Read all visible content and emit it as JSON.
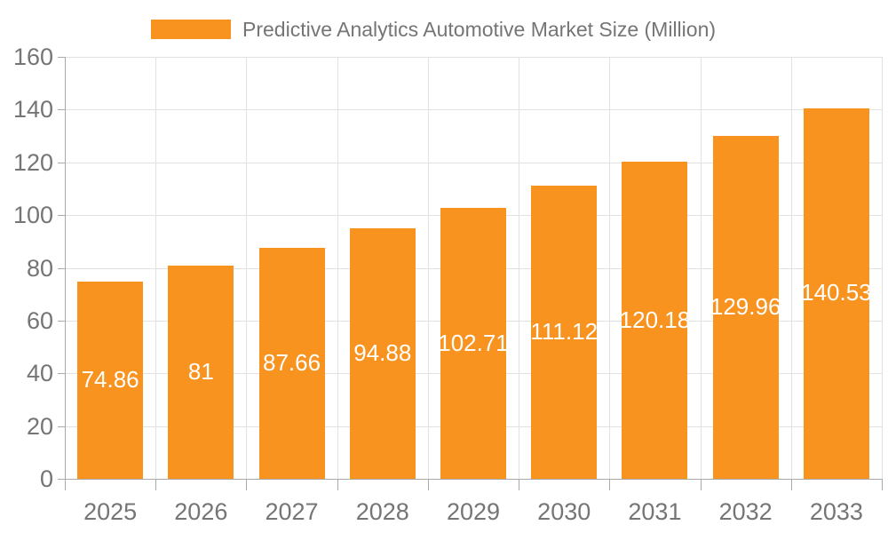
{
  "legend": {
    "label": "Predictive Analytics Automotive Market Size (Million)",
    "swatch_icon": "legend-swatch-icon"
  },
  "colors": {
    "bar": "#F7931E",
    "value_label": "#FFFFFF",
    "axis_text": "#757575",
    "grid_line": "#E2E2E2",
    "axis_line": "#A9A9A9",
    "background": "#FFFFFF"
  },
  "chart_data": {
    "type": "bar",
    "title": "Predictive Analytics Automotive Market Size (Million)",
    "categories": [
      "2025",
      "2026",
      "2027",
      "2028",
      "2029",
      "2030",
      "2031",
      "2032",
      "2033"
    ],
    "values": [
      74.86,
      81,
      87.66,
      94.88,
      102.71,
      111.12,
      120.18,
      129.96,
      140.53
    ],
    "value_labels": [
      "74.86",
      "81",
      "87.66",
      "94.88",
      "102.71",
      "111.12",
      "120.18",
      "129.96",
      "140.53"
    ],
    "xlabel": "",
    "ylabel": "",
    "ylim": [
      0,
      160
    ],
    "ytick_step": 20,
    "yticks": [
      0,
      20,
      40,
      60,
      80,
      100,
      120,
      140,
      160
    ],
    "grid": "both",
    "legend_position": "top-center",
    "value_label_position": "inside-center"
  }
}
